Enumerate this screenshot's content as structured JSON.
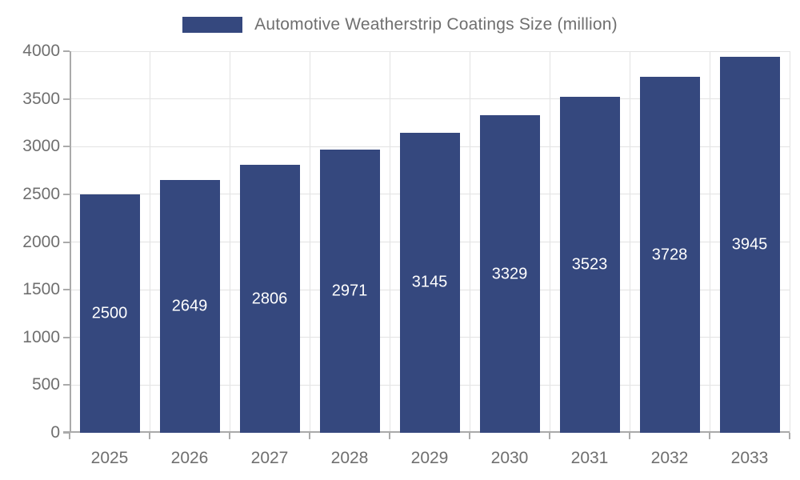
{
  "chart_data": {
    "type": "bar",
    "title": "Automotive Weatherstrip Coatings Size (million)",
    "categories": [
      "2025",
      "2026",
      "2027",
      "2028",
      "2029",
      "2030",
      "2031",
      "2032",
      "2033"
    ],
    "values": [
      2500,
      2649,
      2806,
      2971,
      3145,
      3329,
      3523,
      3728,
      3945
    ],
    "xlabel": "",
    "ylabel": "",
    "ylim": [
      0,
      4000
    ],
    "ytick_step": 500,
    "grid": true,
    "legend_position": "top-center",
    "bar_labels_inside": true
  },
  "colors": {
    "bar": "#35487e",
    "bar_label": "#ffffff",
    "grid": "#e3e3e3",
    "axis": "#aaaaaa",
    "text": "#6f6f6f",
    "background": "#ffffff"
  }
}
